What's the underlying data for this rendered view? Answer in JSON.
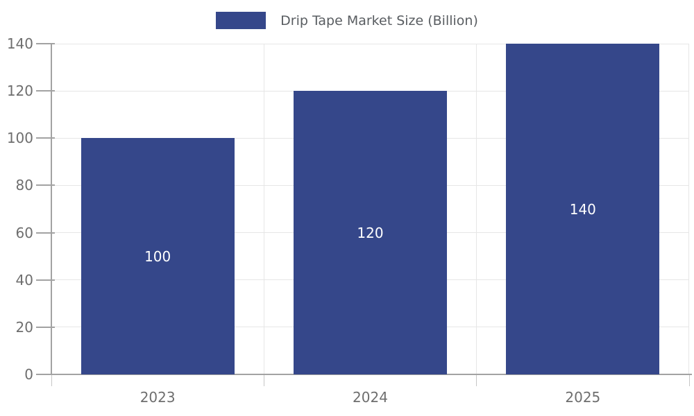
{
  "chart_data": {
    "type": "bar",
    "title": "Drip Tape Market Size (Billion)",
    "series_name": "Drip Tape Market Size (Billion)",
    "categories": [
      "2023",
      "2024",
      "2025"
    ],
    "values": [
      100,
      120,
      140
    ],
    "data_labels": [
      "100",
      "120",
      "140"
    ],
    "xlabel": "",
    "ylabel": "",
    "ylim": [
      0,
      140
    ],
    "yticks": [
      0,
      20,
      40,
      60,
      80,
      100,
      120,
      140
    ],
    "grid": true,
    "legend_position": "top-center",
    "colors": {
      "bar": "#35478A",
      "gridline": "#e6e6e6",
      "axis": "#a2a2a2",
      "minor_tick": "#c6c6c6",
      "tick_label": "#6e6e6e",
      "legend_text": "#595d61",
      "data_label": "#ffffff",
      "background": "#ffffff"
    }
  }
}
